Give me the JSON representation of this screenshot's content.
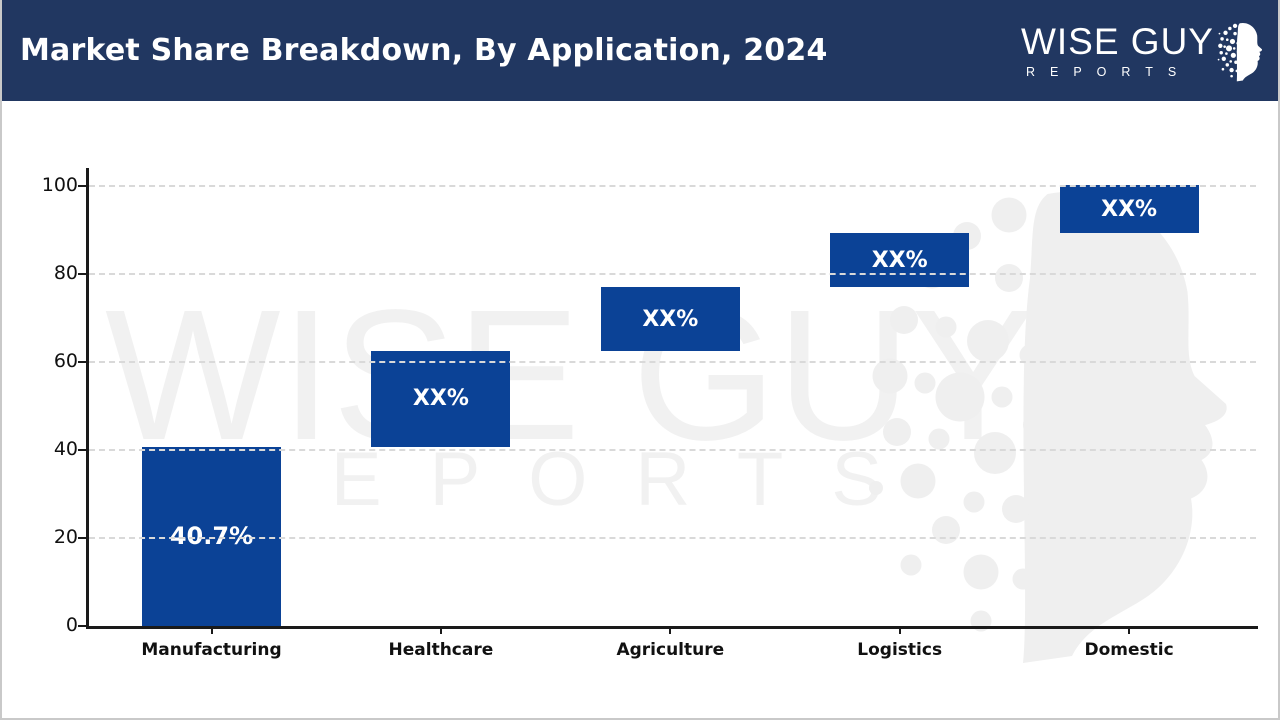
{
  "header": {
    "title": "Market Share Breakdown, By Application, 2024",
    "bg_color": "#213761",
    "logo": {
      "name_top": "WISE GUY",
      "name_bottom": "REPORTS",
      "face_icon": "dotted-profile-face-icon"
    }
  },
  "watermark": {
    "line1": "WISE GUY",
    "line2": "REPORTS",
    "color": "#f1f1f1"
  },
  "chart_data": {
    "type": "bar",
    "subtype": "waterfall",
    "title": "Market Share Breakdown, By Application, 2024",
    "xlabel": "",
    "ylabel": "",
    "ylim": [
      0,
      100
    ],
    "y_ticks": [
      0,
      20,
      40,
      60,
      80,
      100
    ],
    "grid": "horizontal-dashed",
    "legend": "none",
    "categories": [
      "Manufacturing",
      "Healthcare",
      "Agriculture",
      "Logistics",
      "Domestic"
    ],
    "segments": [
      {
        "category": "Manufacturing",
        "start": 0,
        "end": 40.7,
        "label": "40.7%"
      },
      {
        "category": "Healthcare",
        "start": 40.7,
        "end": 62.5,
        "label": "XX%"
      },
      {
        "category": "Agriculture",
        "start": 62.5,
        "end": 77.0,
        "label": "XX%"
      },
      {
        "category": "Logistics",
        "start": 77.0,
        "end": 89.3,
        "label": "XX%"
      },
      {
        "category": "Domestic",
        "start": 89.3,
        "end": 100.2,
        "label": "XX%"
      }
    ],
    "bar_color": "#0b4296",
    "bar_label_color": "#ffffff",
    "grid_color": "#d9d9d9",
    "axis_color": "#1a1a1a"
  }
}
